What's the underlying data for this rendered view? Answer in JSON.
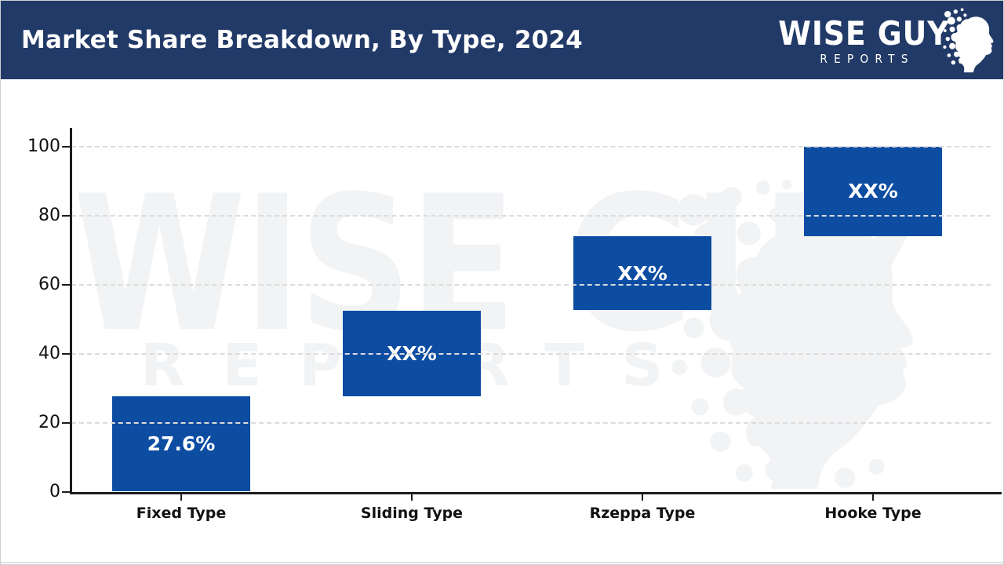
{
  "header": {
    "title": "Market Share Breakdown, By Type, 2024",
    "logo": {
      "line1": "WISE GUY",
      "line2": "REPORTS"
    }
  },
  "watermark": {
    "line1": "WISE GUY",
    "line2": "REPORTS"
  },
  "chart_data": {
    "type": "waterfall",
    "title": "Market Share Breakdown, By Type, 2024",
    "categories": [
      "Fixed Type",
      "Sliding Type",
      "Rzeppa Type",
      "Hooke Type"
    ],
    "segments": [
      {
        "category": "Fixed Type",
        "start": 0,
        "end": 27.6,
        "label": "27.6%"
      },
      {
        "category": "Sliding Type",
        "start": 27.6,
        "end": 52.5,
        "label": "XX%"
      },
      {
        "category": "Rzeppa Type",
        "start": 52.5,
        "end": 74.0,
        "label": "XX%"
      },
      {
        "category": "Hooke Type",
        "start": 74.0,
        "end": 100.0,
        "label": "XX%"
      }
    ],
    "ylim": [
      0,
      100
    ],
    "yticks": [
      0,
      20,
      40,
      60,
      80,
      100
    ],
    "grid": "horizontal-dashed",
    "legend": "none",
    "xlabel": "",
    "ylabel": ""
  },
  "colors": {
    "header_bg": "#223a67",
    "bar": "#0c4da2",
    "bar_label": "#ffffff",
    "axis": "#1c1c1c",
    "grid": "#dcdcdc",
    "watermark": "#f2f3f5",
    "background": "#ffffff"
  }
}
